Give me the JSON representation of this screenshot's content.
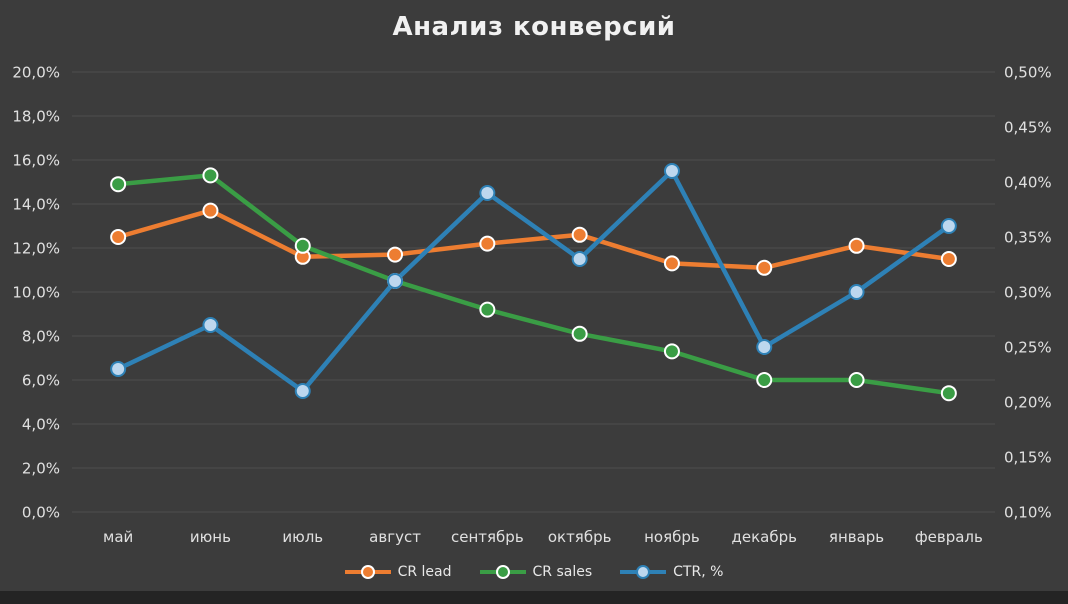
{
  "title": "Анализ конверсий",
  "chart_data": {
    "type": "line",
    "title": "Анализ конверсий",
    "categories": [
      "май",
      "июнь",
      "июль",
      "август",
      "сентябрь",
      "октябрь",
      "ноябрь",
      "декабрь",
      "январь",
      "февраль"
    ],
    "series": [
      {
        "name": "CR lead",
        "axis": "left",
        "color": "#ED7D31",
        "marker_fill": "#ED7D31",
        "marker_stroke": "#FFFFFF",
        "values": [
          12.5,
          13.7,
          11.6,
          11.7,
          12.2,
          12.6,
          11.3,
          11.1,
          12.1,
          11.5
        ]
      },
      {
        "name": "CR sales",
        "axis": "left",
        "color": "#3A9D45",
        "marker_fill": "#3A9D45",
        "marker_stroke": "#FFFFFF",
        "values": [
          14.9,
          15.3,
          12.1,
          10.5,
          9.2,
          8.1,
          7.3,
          6.0,
          6.0,
          5.4
        ]
      },
      {
        "name": "CTR, %",
        "axis": "right",
        "color": "#2E81B6",
        "marker_fill": "#BDD7EE",
        "marker_stroke": "#2E81B6",
        "values": [
          0.23,
          0.27,
          0.21,
          0.31,
          0.39,
          0.33,
          0.41,
          0.25,
          0.3,
          0.36
        ]
      }
    ],
    "left_axis": {
      "min": 0,
      "max": 20,
      "step": 2,
      "tick_labels": [
        "0,0%",
        "2,0%",
        "4,0%",
        "6,0%",
        "8,0%",
        "10,0%",
        "12,0%",
        "14,0%",
        "16,0%",
        "18,0%",
        "20,0%"
      ]
    },
    "right_axis": {
      "min": 0.1,
      "max": 0.5,
      "step": 0.05,
      "tick_labels": [
        "0,10%",
        "0,15%",
        "0,20%",
        "0,25%",
        "0,30%",
        "0,35%",
        "0,40%",
        "0,45%",
        "0,50%"
      ]
    },
    "grid": true,
    "legend_position": "bottom"
  },
  "colors": {
    "background": "#3C3C3C",
    "gridline": "#4E4E4E",
    "axis_text": "#E0E0E0",
    "title_text": "#F1F1F1",
    "bottom_bar": "#242424"
  }
}
